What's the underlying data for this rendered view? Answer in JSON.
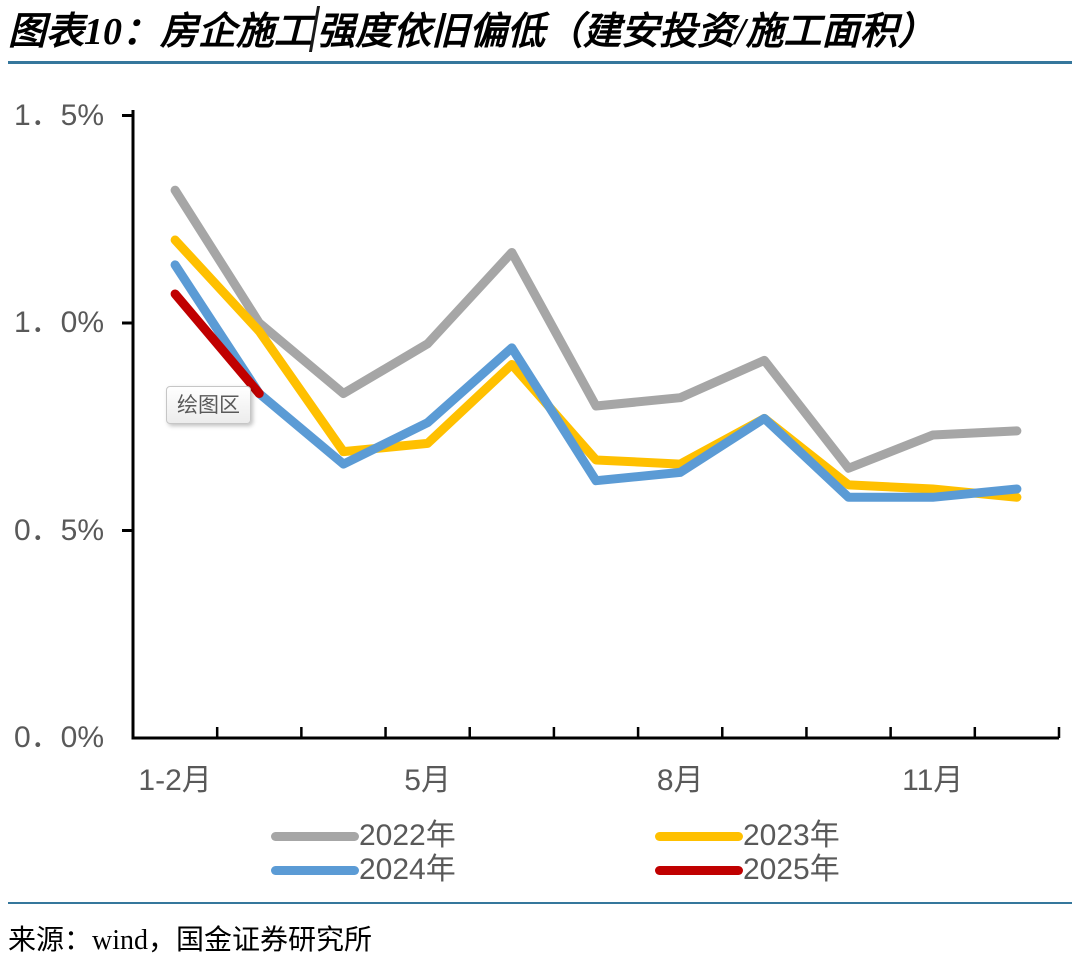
{
  "title": {
    "part1": "图表10：房企施工",
    "part2": "强度依旧偏低（建安投资/施工面积）"
  },
  "plot_area_tooltip": "绘图区",
  "source": "来源：wind，国金证券研究所",
  "colors": {
    "accent_rule": "#35779C",
    "axis": "#000000",
    "tick_label": "#595959",
    "series_2022": "#A6A6A6",
    "series_2023": "#FFC000",
    "series_2024": "#5B9BD5",
    "series_2025": "#C00000"
  },
  "chart_data": {
    "type": "line",
    "title": "房企施工强度依旧偏低（建安投资/施工面积）",
    "categories": [
      "1-2月",
      "3月",
      "4月",
      "5月",
      "6月",
      "7月",
      "8月",
      "9月",
      "10月",
      "11月",
      "12月"
    ],
    "x_tick_labels": [
      "1-2月",
      "5月",
      "8月",
      "11月"
    ],
    "x_tick_label_category_index": [
      0,
      3,
      6,
      9
    ],
    "y_tick_labels": [
      "0．0%",
      "0．5%",
      "1．0%",
      "1．5%"
    ],
    "y_tick_values": [
      0.0,
      0.5,
      1.0,
      1.5
    ],
    "ylim": [
      0,
      1.5
    ],
    "unit": "%",
    "grid": false,
    "legend_position": "bottom",
    "series": [
      {
        "name": "2022年",
        "color": "#A6A6A6",
        "values": [
          1.32,
          1.0,
          0.83,
          0.95,
          1.17,
          0.8,
          0.82,
          0.91,
          0.65,
          0.73,
          0.74
        ]
      },
      {
        "name": "2023年",
        "color": "#FFC000",
        "values": [
          1.2,
          0.98,
          0.69,
          0.71,
          0.9,
          0.67,
          0.66,
          0.77,
          0.61,
          0.6,
          0.58
        ]
      },
      {
        "name": "2024年",
        "color": "#5B9BD5",
        "values": [
          1.14,
          0.83,
          0.66,
          0.76,
          0.94,
          0.62,
          0.64,
          0.77,
          0.58,
          0.58,
          0.6
        ]
      },
      {
        "name": "2025年",
        "color": "#C00000",
        "values": [
          1.07,
          0.83
        ]
      }
    ]
  }
}
